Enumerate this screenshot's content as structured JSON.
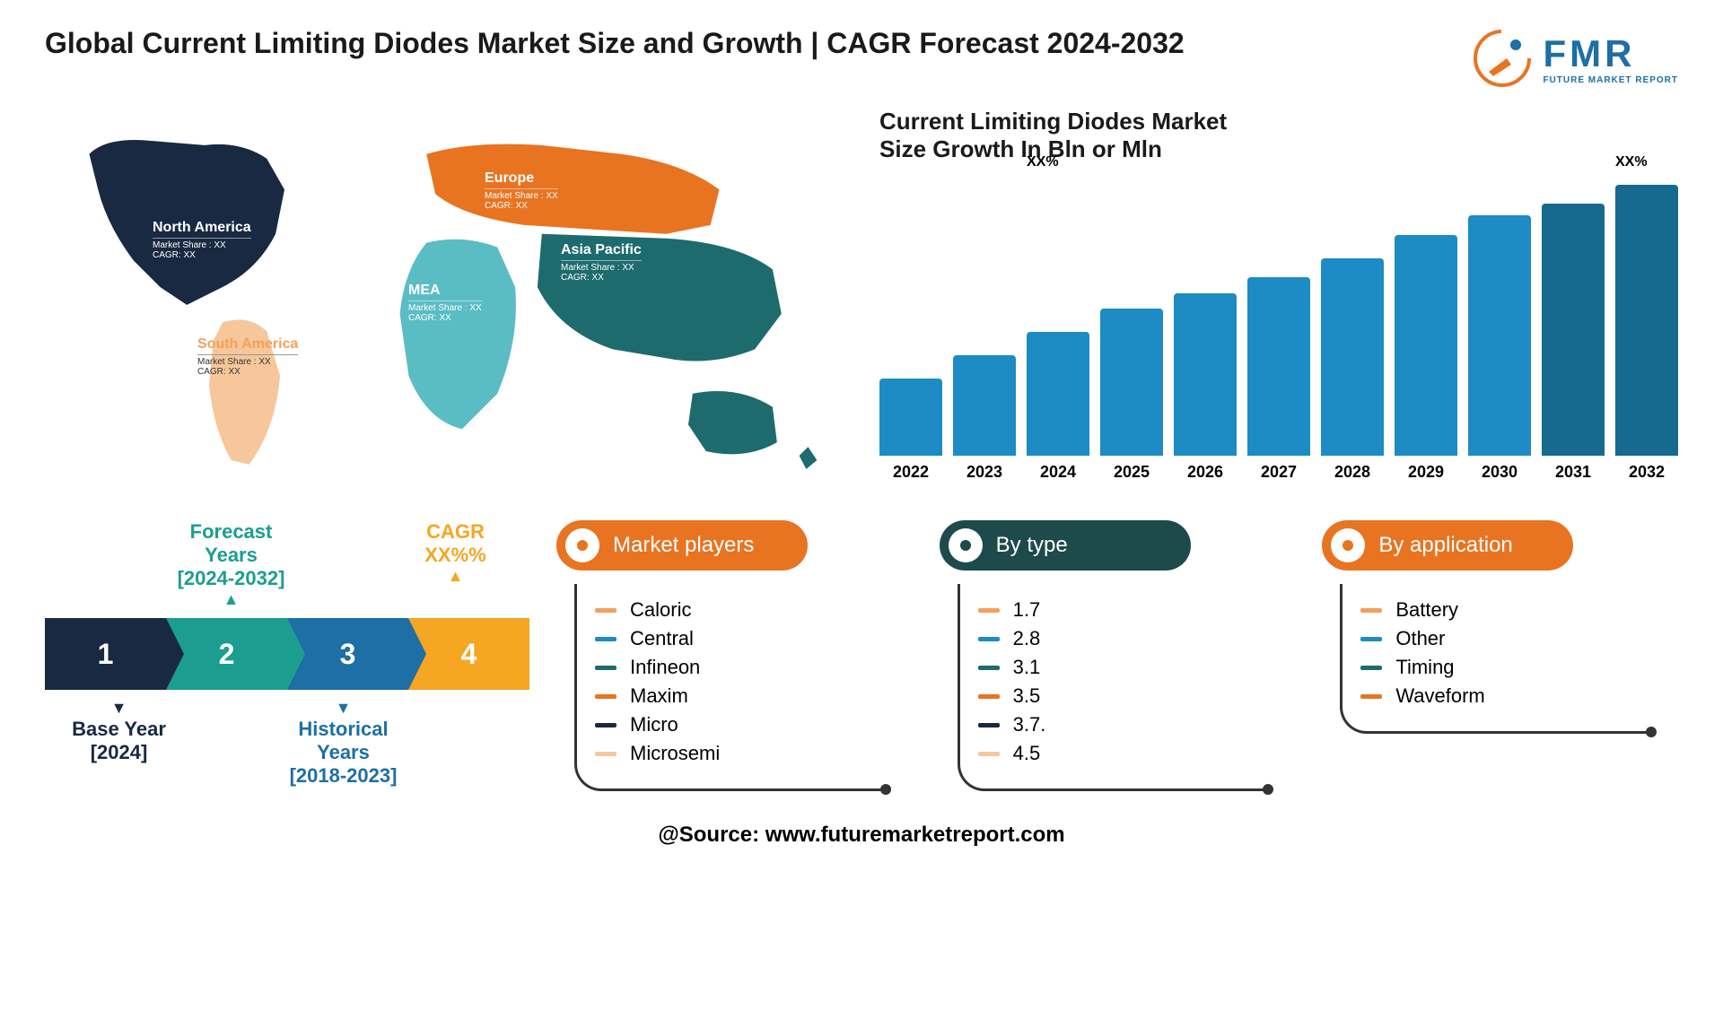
{
  "title": "Global Current Limiting Diodes Market Size and Growth | CAGR Forecast 2024-2032",
  "logo": {
    "text": "FMR",
    "subtitle": "FUTURE MARKET REPORT",
    "icon_color": "#e87422"
  },
  "map": {
    "regions": [
      {
        "name": "North America",
        "share_label": "Market Share : XX",
        "cagr_label": "CAGR: XX",
        "color": "#1a2942"
      },
      {
        "name": "South America",
        "share_label": "Market Share : XX",
        "cagr_label": "CAGR: XX",
        "color": "#f5c79a"
      },
      {
        "name": "Europe",
        "share_label": "Market Share : XX",
        "cagr_label": "CAGR: XX",
        "color": "#e87422"
      },
      {
        "name": "MEA",
        "share_label": "Market Share : XX",
        "cagr_label": "CAGR: XX",
        "color": "#5bbdc4"
      },
      {
        "name": "Asia Pacific",
        "share_label": "Market Share : XX",
        "cagr_label": "CAGR: XX",
        "color": "#1e6b6e"
      }
    ]
  },
  "bar_chart": {
    "title": "Current Limiting Diodes Market Size Growth In Bln or Mln",
    "type": "bar",
    "years": [
      "2022",
      "2023",
      "2024",
      "2025",
      "2026",
      "2027",
      "2028",
      "2029",
      "2030",
      "2031",
      "2032"
    ],
    "values": [
      100,
      130,
      160,
      190,
      210,
      230,
      255,
      285,
      310,
      325,
      350
    ],
    "annotations": {
      "2024": "XX%",
      "2032": "XX%"
    },
    "colors": {
      "default": "#1d8bc4",
      "highlight": "#166a8f"
    },
    "highlight_indices": [
      9,
      10
    ],
    "ylim_max": 360,
    "bar_radius": 4,
    "background_color": "#ffffff",
    "year_fontsize": 18,
    "year_fontweight": "bold"
  },
  "timeline": {
    "forecast": {
      "label": "Forecast Years",
      "value": "[2024-2032]",
      "color": "#1b9e8f"
    },
    "cagr": {
      "label": "CAGR",
      "value": "XX%%",
      "color": "#f5a623"
    },
    "base": {
      "label": "Base Year",
      "value": "[2024]",
      "color": "#1a2942"
    },
    "historical": {
      "label": "Historical Years",
      "value": "[2018-2023]",
      "color": "#1d6fa5"
    },
    "segments": [
      {
        "num": "1",
        "color": "#1a2942"
      },
      {
        "num": "2",
        "color": "#1b9e8f"
      },
      {
        "num": "3",
        "color": "#1d6fa5"
      },
      {
        "num": "4",
        "color": "#f5a623"
      }
    ]
  },
  "segments": {
    "players": {
      "title": "Market players",
      "bg_color": "#e87422",
      "dot_color": "#e87422",
      "items": [
        "Caloric",
        "Central",
        "Infineon",
        "Maxim",
        "Micro",
        "Microsemi"
      ],
      "tick_colors": [
        "#f5a05a",
        "#1d8bc4",
        "#1e6b6e",
        "#e87422",
        "#1a2942",
        "#f5c79a"
      ]
    },
    "type": {
      "title": "By type",
      "bg_color": "#1e4a4c",
      "dot_color": "#1e4a4c",
      "items": [
        "1.7",
        "2.8",
        "3.1",
        "3.5",
        "3.7.",
        "4.5"
      ],
      "tick_colors": [
        "#f5a05a",
        "#1d8bc4",
        "#1e6b6e",
        "#e87422",
        "#1a2942",
        "#f5c79a"
      ]
    },
    "application": {
      "title": "By application",
      "bg_color": "#e87422",
      "dot_color": "#e87422",
      "items": [
        "Battery",
        "Other",
        "Timing",
        "Waveform"
      ],
      "tick_colors": [
        "#f5a05a",
        "#1d8bc4",
        "#1e6b6e",
        "#e87422"
      ]
    }
  },
  "source": "@Source: www.futuremarketreport.com"
}
